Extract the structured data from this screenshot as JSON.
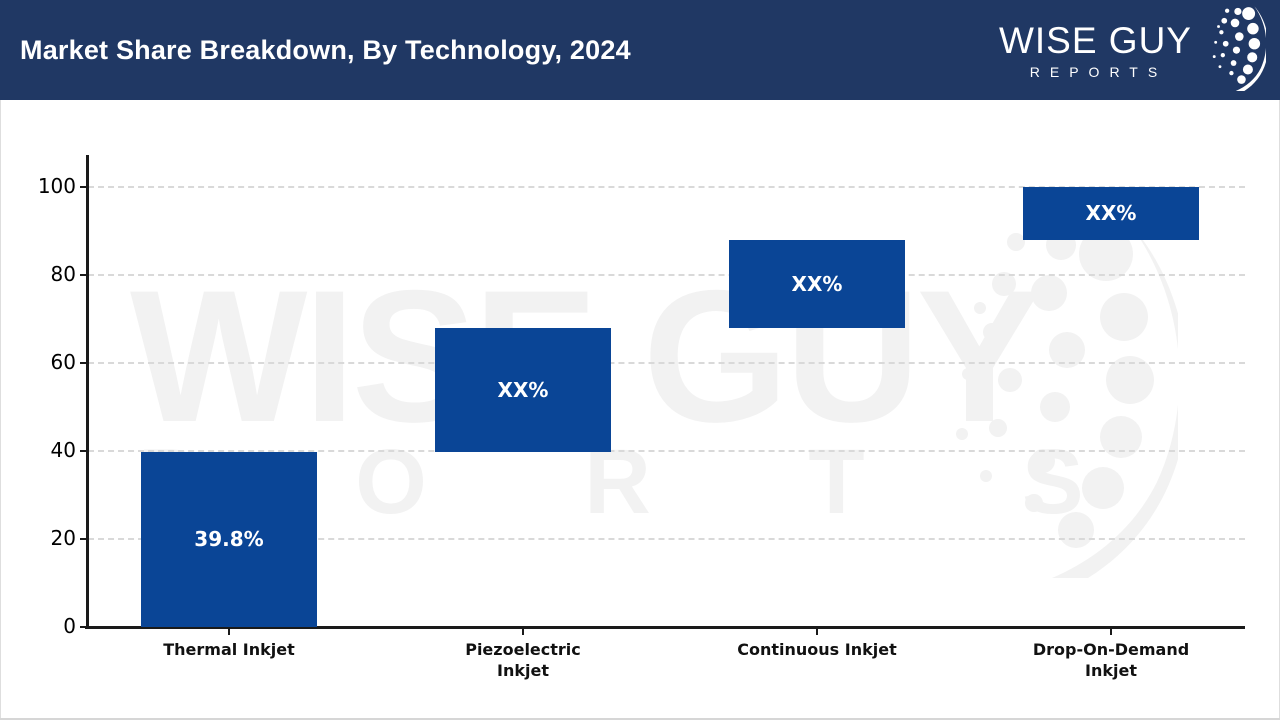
{
  "header": {
    "title": "Market Share Breakdown, By Technology, 2024",
    "logo": {
      "line1": "WISE GUY",
      "line2": "REPORTS"
    }
  },
  "watermark": {
    "line1": "WISE GUY",
    "line2": "P O R T S"
  },
  "chart_data": {
    "type": "bar",
    "subtype": "waterfall-cumulative",
    "title": "Market Share Breakdown, By Technology, 2024",
    "categories": [
      "Thermal Inkjet",
      "Piezoelectric\nInkjet",
      "Continuous Inkjet",
      "Drop-On-Demand\nInkjet"
    ],
    "segments": [
      {
        "category": "Thermal Inkjet",
        "start": 0,
        "end": 39.8,
        "label": "39.8%"
      },
      {
        "category": "Piezoelectric Inkjet",
        "start": 39.8,
        "end": 68,
        "label": "XX%"
      },
      {
        "category": "Continuous Inkjet",
        "start": 68,
        "end": 88,
        "label": "XX%"
      },
      {
        "category": "Drop-On-Demand Inkjet",
        "start": 88,
        "end": 100,
        "label": "XX%"
      }
    ],
    "ylim": [
      0,
      100
    ],
    "yticks": [
      0,
      20,
      40,
      60,
      80,
      100
    ],
    "xlabel": "",
    "ylabel": "",
    "grid": "horizontal-dashed",
    "legend": "none",
    "bar_color": "#0a4596",
    "bar_label_color": "#ffffff"
  },
  "colors": {
    "header_bg": "#203864",
    "bar": "#0a4596",
    "grid": "#d9d9d9",
    "axis": "#1a1a1a",
    "watermark": "#f2f2f2"
  }
}
